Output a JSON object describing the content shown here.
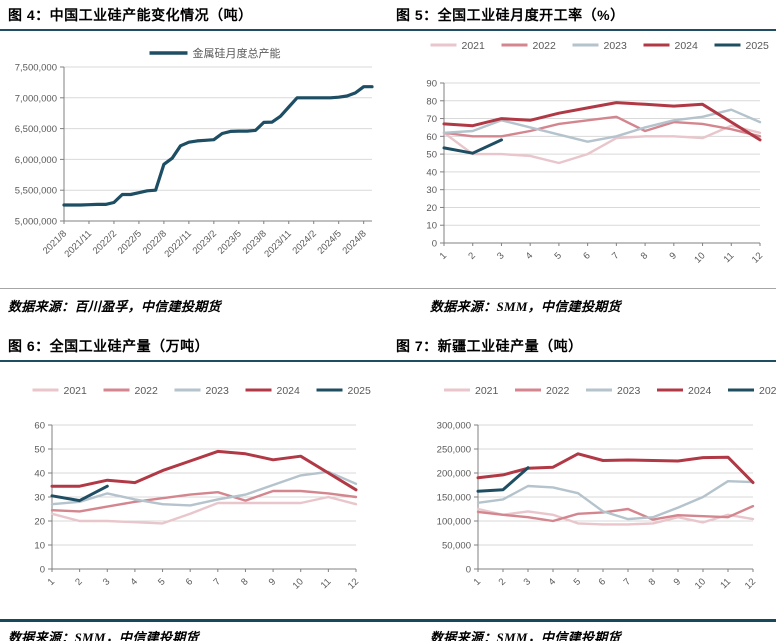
{
  "figures": {
    "fig4": {
      "title": "图 4：中国工业硅产能变化情况（吨）",
      "source": "数据来源：百川盈孚，中信建投期货"
    },
    "fig5": {
      "title": "图 5：全国工业硅月度开工率（%）",
      "source": "数据来源：SMM，中信建投期货"
    },
    "fig6": {
      "title": "图 6：全国工业硅产量（万吨）",
      "source": "数据来源：SMM，中信建投期货"
    },
    "fig7": {
      "title": "图 7：新疆工业硅产量（吨）",
      "source": "数据来源：SMM，中信建投期货"
    }
  },
  "colors": {
    "2021": "#e8c6cc",
    "2022": "#d4868f",
    "2023": "#b4c3cc",
    "2024": "#b03945",
    "2025": "#1f4e63",
    "capacity_line": "#1d4e63",
    "grid": "#d9d9d9",
    "axis": "#808080",
    "tick_text": "#595959",
    "title_rule": "#1f4e63"
  },
  "chart_data": [
    {
      "id": "fig4",
      "type": "line",
      "title": "图 4：中国工业硅产能变化情况（吨）",
      "x": [
        "2021/8",
        "2021/9",
        "2021/10",
        "2021/11",
        "2021/12",
        "2022/1",
        "2022/2",
        "2022/3",
        "2022/4",
        "2022/5",
        "2022/6",
        "2022/7",
        "2022/8",
        "2022/9",
        "2022/10",
        "2022/11",
        "2022/12",
        "2023/1",
        "2023/2",
        "2023/3",
        "2023/4",
        "2023/5",
        "2023/6",
        "2023/7",
        "2023/8",
        "2023/9",
        "2023/10",
        "2023/11",
        "2023/12",
        "2024/1",
        "2024/2",
        "2024/3",
        "2024/4",
        "2024/5",
        "2024/6",
        "2024/7",
        "2024/8",
        "2024/9"
      ],
      "x_tick_labels": [
        "2021/8",
        "2021/11",
        "2022/2",
        "2022/5",
        "2022/8",
        "2022/11",
        "2023/2",
        "2023/5",
        "2023/8",
        "2023/11",
        "2024/2",
        "2024/5",
        "2024/8"
      ],
      "ylim": [
        5000000,
        7500000
      ],
      "ytick_step": 500000,
      "ytick_format": "comma",
      "grid": true,
      "legend_position": "top",
      "series": [
        {
          "name": "金属硅月度总产能",
          "color": "#1d4e63",
          "values": [
            5260000,
            5260000,
            5260000,
            5265000,
            5270000,
            5270000,
            5300000,
            5430000,
            5430000,
            5460000,
            5490000,
            5500000,
            5920000,
            6020000,
            6220000,
            6280000,
            6300000,
            6310000,
            6320000,
            6420000,
            6455000,
            6460000,
            6460000,
            6470000,
            6600000,
            6605000,
            6700000,
            6850000,
            7000000,
            7000000,
            7000000,
            7000000,
            7000000,
            7010000,
            7030000,
            7080000,
            7180000,
            7180000
          ]
        }
      ]
    },
    {
      "id": "fig5",
      "type": "line",
      "title": "图 5：全国工业硅月度开工率（%）",
      "x": [
        "1",
        "2",
        "3",
        "4",
        "5",
        "6",
        "7",
        "8",
        "9",
        "10",
        "11",
        "12"
      ],
      "ylim": [
        0,
        90
      ],
      "ytick_step": 10,
      "ytick_format": "plain",
      "grid": true,
      "legend_position": "top",
      "series": [
        {
          "name": "2021",
          "color": "#e8c6cc",
          "values": [
            62,
            50,
            50,
            49,
            45,
            50,
            59,
            60,
            60,
            59,
            66,
            62
          ]
        },
        {
          "name": "2022",
          "color": "#d4868f",
          "values": [
            62,
            60,
            60,
            63,
            67,
            69,
            71,
            63,
            68,
            67,
            64,
            60
          ]
        },
        {
          "name": "2023",
          "color": "#b4c3cc",
          "values": [
            62,
            63,
            69,
            65,
            61,
            57,
            60,
            65,
            69,
            71,
            75,
            68
          ]
        },
        {
          "name": "2024",
          "color": "#b03945",
          "values": [
            67,
            66,
            70,
            69,
            73,
            76,
            79,
            78,
            77,
            78,
            68,
            58
          ]
        },
        {
          "name": "2025",
          "color": "#1f4e63",
          "values": [
            53.5,
            50.5,
            58
          ]
        }
      ]
    },
    {
      "id": "fig6",
      "type": "line",
      "title": "图 6：全国工业硅产量（万吨）",
      "x": [
        "1",
        "2",
        "3",
        "4",
        "5",
        "6",
        "7",
        "8",
        "9",
        "10",
        "11",
        "12"
      ],
      "ylim": [
        0,
        60
      ],
      "ytick_step": 10,
      "ytick_format": "plain",
      "grid": true,
      "legend_position": "top",
      "series": [
        {
          "name": "2021",
          "color": "#e8c6cc",
          "values": [
            23,
            20,
            20,
            19.5,
            19,
            23,
            27.5,
            27.5,
            27.5,
            27.5,
            30,
            27
          ]
        },
        {
          "name": "2022",
          "color": "#d4868f",
          "values": [
            24.5,
            24,
            26,
            28,
            29.5,
            31,
            32,
            28.5,
            32.5,
            32.5,
            31.5,
            30
          ]
        },
        {
          "name": "2023",
          "color": "#b4c3cc",
          "values": [
            27,
            28,
            31.5,
            29,
            27,
            26.5,
            29,
            31,
            35,
            39,
            40.5,
            35.5
          ]
        },
        {
          "name": "2024",
          "color": "#b03945",
          "values": [
            34.5,
            34.5,
            37,
            36,
            41,
            45,
            49,
            48,
            45.5,
            47,
            40,
            33
          ]
        },
        {
          "name": "2025",
          "color": "#1f4e63",
          "values": [
            30.5,
            28.5,
            34.5
          ]
        }
      ]
    },
    {
      "id": "fig7",
      "type": "line",
      "title": "图 7：新疆工业硅产量（吨）",
      "x": [
        "1",
        "2",
        "3",
        "4",
        "5",
        "6",
        "7",
        "8",
        "9",
        "10",
        "11",
        "12"
      ],
      "ylim": [
        0,
        300000
      ],
      "ytick_step": 50000,
      "ytick_format": "comma",
      "grid": true,
      "legend_position": "top",
      "series": [
        {
          "name": "2021",
          "color": "#e8c6cc",
          "values": [
            125000,
            113000,
            120000,
            113000,
            95000,
            93000,
            93000,
            95000,
            108000,
            97000,
            113000,
            104000
          ]
        },
        {
          "name": "2022",
          "color": "#d4868f",
          "values": [
            119000,
            113000,
            108000,
            100000,
            115000,
            118000,
            125000,
            103000,
            112000,
            110000,
            108000,
            131000
          ]
        },
        {
          "name": "2023",
          "color": "#b4c3cc",
          "values": [
            138000,
            145000,
            173000,
            170000,
            158000,
            120000,
            104000,
            108000,
            128000,
            150000,
            183000,
            181000
          ]
        },
        {
          "name": "2024",
          "color": "#b03945",
          "values": [
            190000,
            196000,
            210000,
            212000,
            240000,
            226000,
            227000,
            226000,
            225000,
            232000,
            233000,
            180000
          ]
        },
        {
          "name": "2025",
          "color": "#1f4e63",
          "values": [
            162000,
            165000,
            211000
          ]
        }
      ]
    }
  ]
}
